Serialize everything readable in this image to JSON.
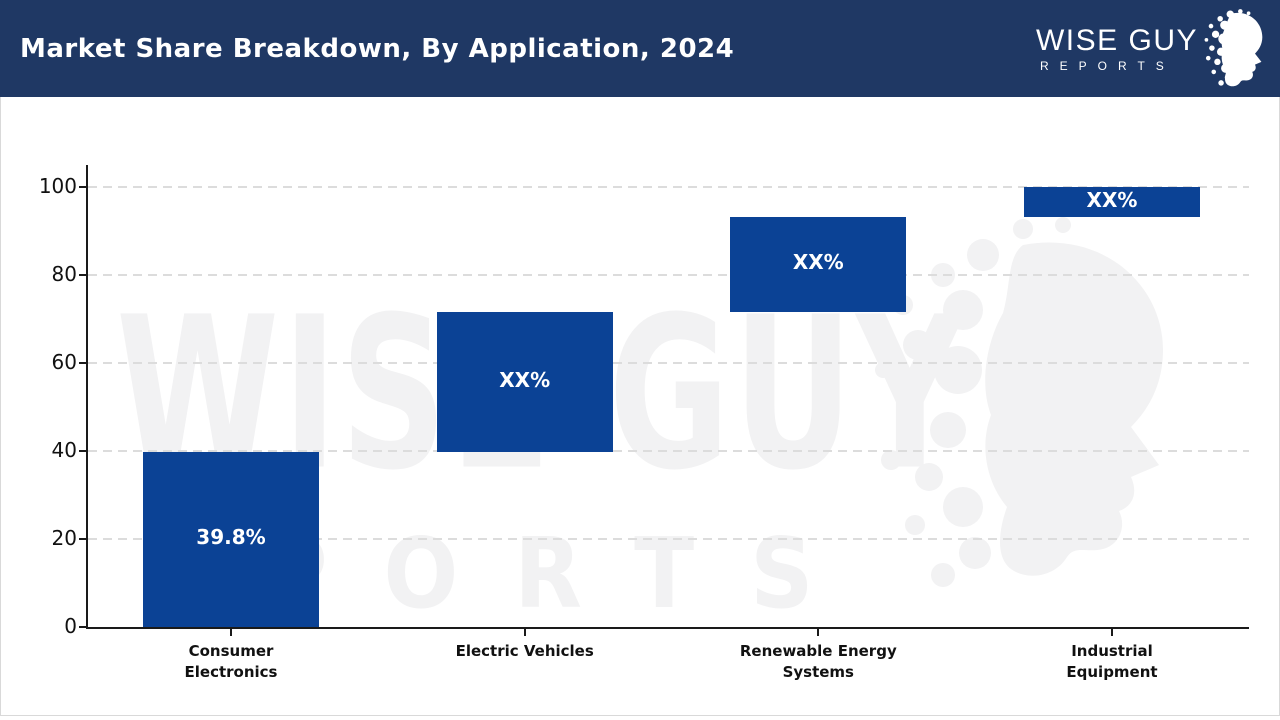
{
  "header": {
    "title": "Market Share Breakdown, By Application, 2024",
    "bg_color": "#1f3864",
    "logo": {
      "line1": "WISE GUY",
      "line2": "REPORTS"
    }
  },
  "watermark": {
    "line1": "WISE GUY",
    "line2": "PORTS"
  },
  "chart_data": {
    "type": "bar",
    "subtype": "waterfall",
    "title": "Market Share Breakdown, By Application, 2024",
    "categories": [
      "Consumer Electronics",
      "Electric Vehicles",
      "Renewable Energy Systems",
      "Industrial Equipment"
    ],
    "tick_label_lines": [
      [
        "Consumer",
        "Electronics"
      ],
      [
        "Electric Vehicles"
      ],
      [
        "Renewable Energy",
        "Systems"
      ],
      [
        "Industrial",
        "Equipment"
      ]
    ],
    "segments": [
      {
        "category": "Consumer Electronics",
        "start": 0,
        "end": 39.8,
        "label": "39.8%"
      },
      {
        "category": "Electric Vehicles",
        "start": 39.8,
        "end": 71.6,
        "label": "XX%"
      },
      {
        "category": "Renewable Energy Systems",
        "start": 71.6,
        "end": 93.2,
        "label": "XX%"
      },
      {
        "category": "Industrial Equipment",
        "start": 93.2,
        "end": 100,
        "label": "XX%"
      }
    ],
    "ylim": [
      0,
      100
    ],
    "yticks": [
      0,
      20,
      40,
      60,
      80,
      100
    ],
    "grid": "horizontal-dashed",
    "legend": "none",
    "bar_color": "#0b4295",
    "value_label_color": "#ffffff",
    "axis_color": "#1a1a1a",
    "gridline_color": "#dcdcdc"
  }
}
